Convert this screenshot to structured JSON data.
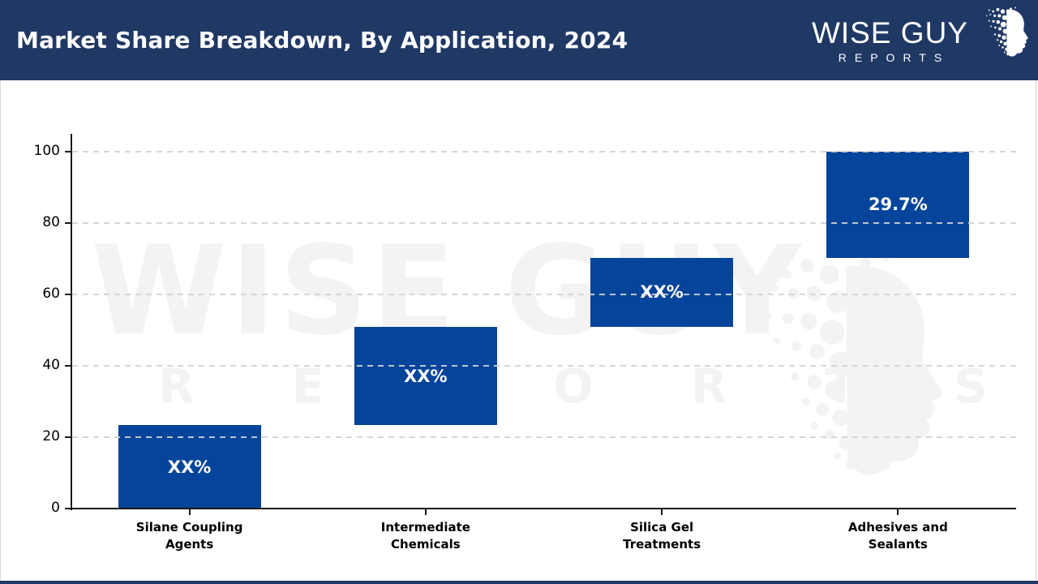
{
  "header": {
    "title": "Market Share Breakdown, By Application, 2024",
    "logo": {
      "line1": "WISE GUY",
      "line2": "REPORTS"
    }
  },
  "watermark": {
    "line1": "WISE GUY",
    "line2": "R E P O R T S"
  },
  "colors": {
    "header_bg": "#203864",
    "bar_blue": "#05449B",
    "watermark_gray": "#f3f3f3",
    "gridline_gray": "#d2d2d2",
    "axis_black": "#1a1a1a"
  },
  "chart_data": {
    "type": "bar",
    "subtype": "waterfall",
    "title": "Market Share Breakdown, By Application, 2024",
    "categories": [
      "Silane Coupling Agents",
      "Intermediate Chemicals",
      "Silica Gel Treatments",
      "Adhesives and Sealants"
    ],
    "category_lines": [
      [
        "Silane Coupling",
        "Agents"
      ],
      [
        "Intermediate",
        "Chemicals"
      ],
      [
        "Silica Gel",
        "Treatments"
      ],
      [
        "Adhesives and",
        "Sealants"
      ]
    ],
    "segments": [
      {
        "label": "XX%",
        "start": 0,
        "end": 23.3
      },
      {
        "label": "XX%",
        "start": 23.3,
        "end": 50.9
      },
      {
        "label": "XX%",
        "start": 50.9,
        "end": 70.3
      },
      {
        "label": "29.7%",
        "start": 70.3,
        "end": 100
      }
    ],
    "yticks": [
      0,
      20,
      40,
      60,
      80,
      100
    ],
    "ytick_labels": [
      "0",
      "20",
      "40",
      "60",
      "80",
      "100"
    ],
    "ylim": [
      0,
      105
    ],
    "xlabel": "",
    "ylabel": "",
    "grid": true,
    "legend": false,
    "bar_color": "#05449B"
  }
}
